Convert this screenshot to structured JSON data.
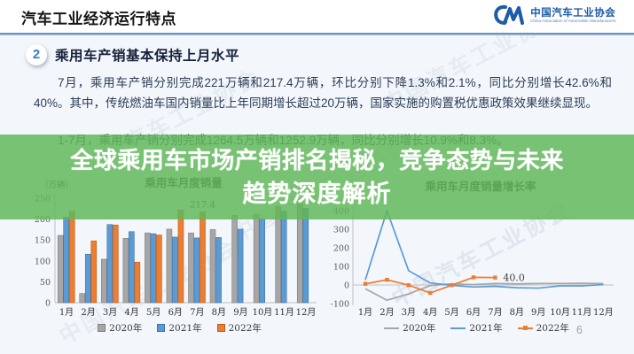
{
  "header": {
    "title": "汽车工业经济运行特点",
    "logo": {
      "org_cn": "中国汽车工业协会",
      "org_en": "China Association of Automobile Manufacturers",
      "color": "#1d5ca8"
    }
  },
  "section": {
    "number": "2",
    "heading": "乘用车产销基本保持上月水平",
    "paragraph1": "7月，乘用车产销分别完成221万辆和217.4万辆，环比分别下降1.3%和2.1%，同比分别增长42.6%和40%。其中，传统燃油车国内销量比上年同期增长超过20万辆，国家实施的购置税优惠政策效果继续显现。",
    "paragraph2": "1-7月，乘用车产销分别完成1264.5万辆和1252.9万辆，同比分别增长10.9%和8.3%。"
  },
  "overlay_banner": {
    "line1": "全球乘用车市场产销排名揭秘，竞争态势与未来",
    "line2": "趋势深度解析",
    "bg_color": "#60b858",
    "bg_alpha": 0.84,
    "text_color": "#ffffff"
  },
  "watermark_text": "中国汽车工业协会",
  "page_number": "6",
  "chart_data": [
    {
      "type": "bar",
      "title": "乘用车月度销量",
      "unit_label": "（万辆）",
      "categories": [
        "1月",
        "2月",
        "3月",
        "4月",
        "5月",
        "6月",
        "7月",
        "8月",
        "9月",
        "10月",
        "11月",
        "12月"
      ],
      "series": [
        {
          "name": "2020年",
          "color": "#a6a6a6",
          "border": "#7f7f7f",
          "values": [
            161,
            22,
            104,
            154,
            167,
            176,
            167,
            175,
            209,
            211,
            230,
            237
          ]
        },
        {
          "name": "2021年",
          "color": "#5b9bd5",
          "border": "#41719c",
          "values": [
            205,
            116,
            187,
            170,
            165,
            157,
            155,
            156,
            176,
            201,
            219,
            226
          ]
        },
        {
          "name": "2022年",
          "color": "#ed7d31",
          "border": "#b55f1f",
          "values": [
            219,
            148,
            186,
            97,
            162,
            222,
            217.4,
            null,
            null,
            null,
            null,
            null
          ]
        }
      ],
      "ylim": [
        0,
        250
      ],
      "yticks": [
        0,
        50,
        100,
        150,
        200,
        250
      ],
      "grid": false,
      "legend_position": "bottom",
      "data_label": {
        "series_index": 2,
        "point_index": 6,
        "text": "217.4"
      }
    },
    {
      "type": "line",
      "title": "乘用车月度销量增长率",
      "categories": [
        "1月",
        "2月",
        "3月",
        "4月",
        "5月",
        "6月",
        "7月",
        "8月",
        "9月",
        "10月",
        "11月",
        "12月"
      ],
      "series": [
        {
          "name": "2020年",
          "color": "#a6a6a6",
          "marker": false,
          "values": [
            -20,
            -82,
            -48,
            -3,
            6,
            2,
            8,
            6,
            8,
            8,
            9,
            7
          ]
        },
        {
          "name": "2021年",
          "color": "#5b9bd5",
          "marker": false,
          "values": [
            27,
            400,
            77,
            11,
            -2,
            -11,
            -7,
            -15,
            -17,
            -5,
            -5,
            2
          ]
        },
        {
          "name": "2022年",
          "color": "#ed7d31",
          "marker": true,
          "values": [
            6,
            28,
            -1,
            -43,
            -1,
            41,
            40,
            null,
            null,
            null,
            null,
            null
          ]
        }
      ],
      "ylim": [
        -100,
        400
      ],
      "yticks": [
        -100,
        0,
        100,
        200,
        300,
        400
      ],
      "grid": false,
      "legend_position": "bottom",
      "data_label": {
        "series_index": 2,
        "point_index": 6,
        "text": "40.0"
      }
    }
  ]
}
